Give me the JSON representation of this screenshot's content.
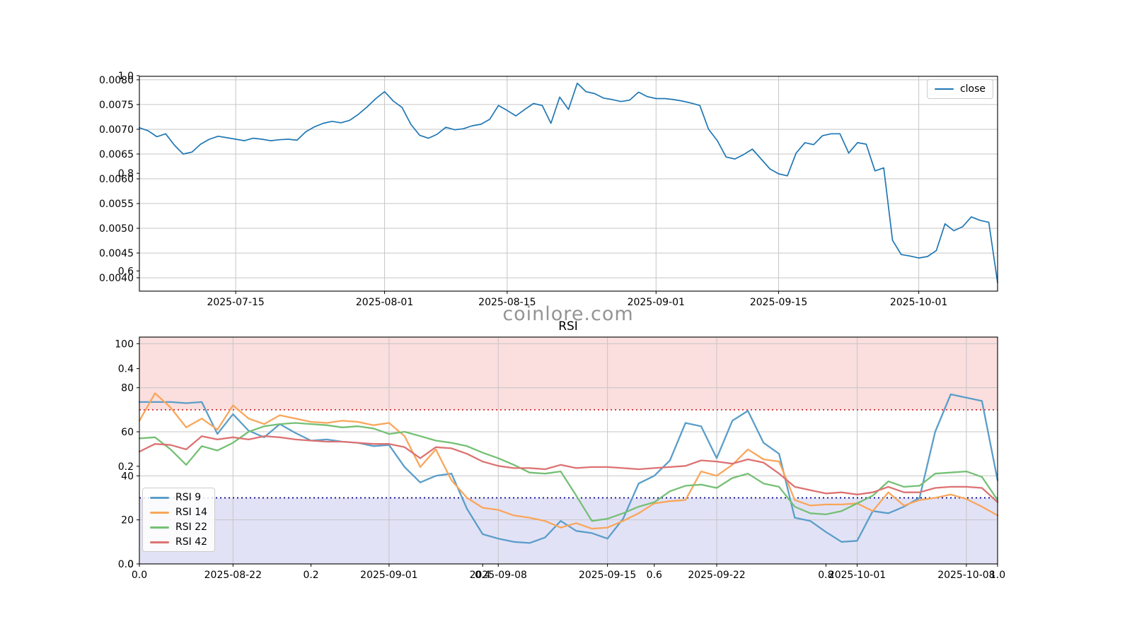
{
  "watermark": "coinlore.com",
  "colors": {
    "close_line": "#1f77b4",
    "rsi9": "#5b9ec9",
    "rsi14": "#f9a65a",
    "rsi22": "#74c074",
    "rsi42": "#dd7272",
    "overbought_band": "#fbdede",
    "oversold_band": "#e2e2f6",
    "overbought_dotted": "#d62728",
    "oversold_dotted": "#00008b",
    "grid": "#c6c6c6",
    "spine": "#000000",
    "watermark_text": "#949494"
  },
  "axes_overlay": {
    "xticks": [
      "0.0",
      "0.2",
      "0.4",
      "0.6",
      "0.8",
      "1.0"
    ],
    "yticks": [
      "1.0",
      "0.8",
      "0.6",
      "0.4",
      "0.2",
      "0.0"
    ]
  },
  "chart_data": [
    {
      "type": "line",
      "title": "",
      "grid": true,
      "legend": {
        "position": "upper right"
      },
      "ylim": [
        0.00373,
        0.00807
      ],
      "yticks": [
        "0.0080",
        "0.0075",
        "0.0070",
        "0.0065",
        "0.0060",
        "0.0055",
        "0.0050",
        "0.0045",
        "0.0040"
      ],
      "xticks": [
        "2025-07-15",
        "2025-08-01",
        "2025-08-15",
        "2025-09-01",
        "2025-09-15",
        "2025-10-01"
      ],
      "x_start_date": "2025-07-04",
      "x_end_date": "2025-10-10",
      "series": [
        {
          "name": "close",
          "color": "#1f77b4",
          "values": [
            0.00703,
            0.00697,
            0.00685,
            0.00691,
            0.00668,
            0.0065,
            0.00654,
            0.0067,
            0.0068,
            0.00686,
            0.00683,
            0.0068,
            0.00677,
            0.00682,
            0.0068,
            0.00677,
            0.00679,
            0.0068,
            0.00678,
            0.00695,
            0.00705,
            0.00712,
            0.00716,
            0.00713,
            0.00718,
            0.0073,
            0.00745,
            0.00762,
            0.00776,
            0.00757,
            0.00744,
            0.0071,
            0.00688,
            0.00682,
            0.0069,
            0.00704,
            0.00699,
            0.00701,
            0.00707,
            0.0071,
            0.0072,
            0.00748,
            0.00738,
            0.00727,
            0.0074,
            0.00752,
            0.00748,
            0.00712,
            0.00765,
            0.0074,
            0.00793,
            0.00776,
            0.00772,
            0.00763,
            0.0076,
            0.00756,
            0.00759,
            0.00775,
            0.00766,
            0.00762,
            0.00762,
            0.0076,
            0.00757,
            0.00753,
            0.00748,
            0.007,
            0.00677,
            0.00644,
            0.0064,
            0.00649,
            0.0066,
            0.0064,
            0.0062,
            0.0061,
            0.00606,
            0.00652,
            0.00673,
            0.00669,
            0.00687,
            0.00691,
            0.00691,
            0.00652,
            0.00673,
            0.0067,
            0.00616,
            0.00622,
            0.00476,
            0.00447,
            0.00444,
            0.0044,
            0.00443,
            0.00455,
            0.00509,
            0.00495,
            0.00503,
            0.00523,
            0.00516,
            0.00512,
            0.0039
          ]
        }
      ]
    },
    {
      "type": "line",
      "title": "RSI",
      "grid": true,
      "legend": {
        "position": "lower left"
      },
      "ylim": [
        0,
        103
      ],
      "yticks": [
        "100",
        "80",
        "60",
        "40",
        "20",
        "0"
      ],
      "xticks": [
        "2025-08-22",
        "2025-09-01",
        "2025-09-08",
        "2025-09-15",
        "2025-09-22",
        "2025-10-01",
        "2025-10-08"
      ],
      "x_start_date": "2025-08-16",
      "x_end_date": "2025-10-10",
      "overbought_level": 70,
      "oversold_level": 30,
      "bands": [
        {
          "from": 70,
          "to": 103,
          "color": "#fbdede"
        },
        {
          "from": 0,
          "to": 30,
          "color": "#e2e2f6"
        }
      ],
      "series": [
        {
          "name": "RSI 9",
          "color": "#5b9ec9",
          "values": [
            73.5,
            73.5,
            73.5,
            73,
            73.5,
            59,
            68,
            60.5,
            57.5,
            63.5,
            59.5,
            56,
            56.5,
            55.5,
            55,
            53.5,
            54,
            44,
            37,
            40,
            41,
            25,
            13.5,
            11.5,
            10,
            9.5,
            12,
            19.5,
            15,
            14,
            11.5,
            20.5,
            36.5,
            40,
            47,
            64,
            62.5,
            48,
            65,
            69.5,
            55,
            50,
            21,
            19.5,
            14.5,
            10,
            10.5,
            24,
            23,
            26,
            30,
            60,
            77,
            75.5,
            74,
            38
          ]
        },
        {
          "name": "RSI 14",
          "color": "#f9a65a",
          "values": [
            65,
            77.5,
            71,
            62,
            66,
            61,
            72,
            66,
            63.5,
            67.5,
            66,
            64.5,
            64,
            65,
            64.5,
            63,
            64,
            58,
            44,
            52,
            38,
            30,
            25.5,
            24.5,
            22,
            21,
            19.5,
            16.5,
            18.5,
            16,
            16.5,
            19.5,
            23,
            27.5,
            28.5,
            29,
            42,
            40,
            45,
            52,
            47.5,
            46.5,
            29,
            26.5,
            27,
            27,
            27.5,
            24,
            32.5,
            26.5,
            29,
            30,
            31.5,
            29.5,
            26,
            22
          ]
        },
        {
          "name": "RSI 22",
          "color": "#74c074",
          "values": [
            57,
            57.5,
            52,
            45,
            53.5,
            51.5,
            55,
            60,
            62.5,
            63.5,
            64,
            63.5,
            63,
            62,
            62.5,
            61.5,
            59,
            60,
            58,
            56,
            55,
            53.5,
            50.5,
            48,
            45,
            41.5,
            41,
            42,
            31,
            19.5,
            20.5,
            23,
            26,
            28,
            33,
            35.5,
            36,
            34.5,
            39,
            41,
            36.5,
            35,
            26,
            23,
            22.5,
            24,
            27.5,
            31,
            37.5,
            35,
            35.5,
            41,
            41.5,
            42,
            39.5,
            29
          ]
        },
        {
          "name": "RSI 42",
          "color": "#dd7272",
          "values": [
            51,
            54.5,
            54,
            52,
            58,
            56.5,
            57.5,
            56.5,
            58,
            57.5,
            56.5,
            56,
            55.5,
            55.5,
            55,
            54.5,
            54.5,
            53,
            48,
            53,
            52.5,
            50,
            46.5,
            44.5,
            43.5,
            43.5,
            43,
            45,
            43.5,
            44,
            44,
            43.5,
            43,
            43.5,
            44,
            44.5,
            47,
            46.5,
            45.5,
            47.5,
            46,
            41,
            35,
            33.5,
            32,
            32.5,
            31.5,
            32.5,
            35,
            32.5,
            32.5,
            34.5,
            35,
            35,
            34.5,
            28
          ]
        }
      ]
    }
  ]
}
